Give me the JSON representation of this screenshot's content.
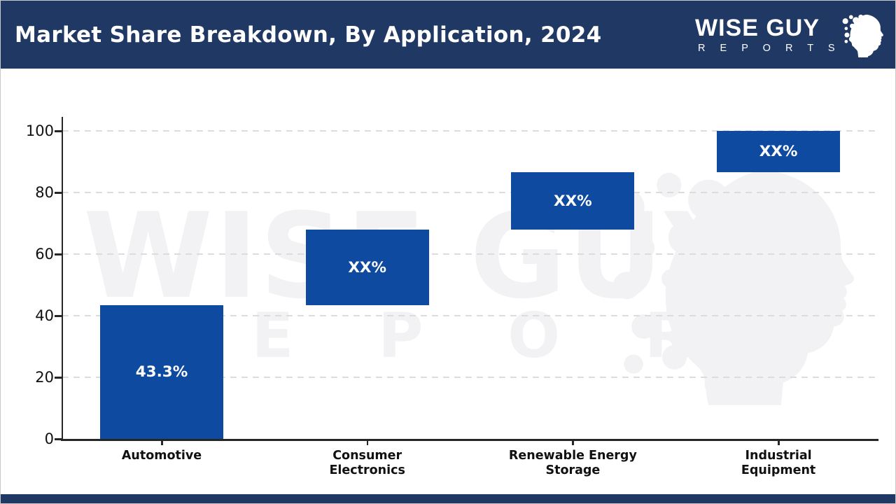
{
  "header": {
    "title": "Market Share Breakdown, By Application, 2024",
    "logo_line1": "WISE GUY",
    "logo_line2": "R E P O R T S"
  },
  "watermark": {
    "line1": "WISE GUY",
    "line2": "R E P O R T S"
  },
  "colors": {
    "header_bg": "#1f3864",
    "footer_bg": "#1f3864",
    "bar": "#0d4aa0",
    "bar_label_text": "#ffffff",
    "axis": "#262626",
    "grid": "#dcdcdc",
    "tick_text": "#111111",
    "watermark": "#f2f2f4"
  },
  "chart_data": {
    "type": "waterfall",
    "title": "Market Share Breakdown, By Application, 2024",
    "categories": [
      "Automotive",
      "Consumer\nElectronics",
      "Renewable Energy\nStorage",
      "Industrial\nEquipment"
    ],
    "segments": [
      {
        "category": "Automotive",
        "start": 0,
        "end": 43.3,
        "label": "43.3%"
      },
      {
        "category": "Consumer Electronics",
        "start": 43.3,
        "end": 68.0,
        "label": "XX%"
      },
      {
        "category": "Renewable Energy Storage",
        "start": 68.0,
        "end": 86.5,
        "label": "XX%"
      },
      {
        "category": "Industrial Equipment",
        "start": 86.5,
        "end": 100.0,
        "label": "XX%"
      }
    ],
    "yticks": [
      0,
      20,
      40,
      60,
      80,
      100
    ],
    "ylim": [
      0,
      104.5
    ],
    "xlabel": "",
    "ylabel": "",
    "grid": "horizontal-dashed",
    "legend": false,
    "bar_value_placeholders": "XX%"
  }
}
